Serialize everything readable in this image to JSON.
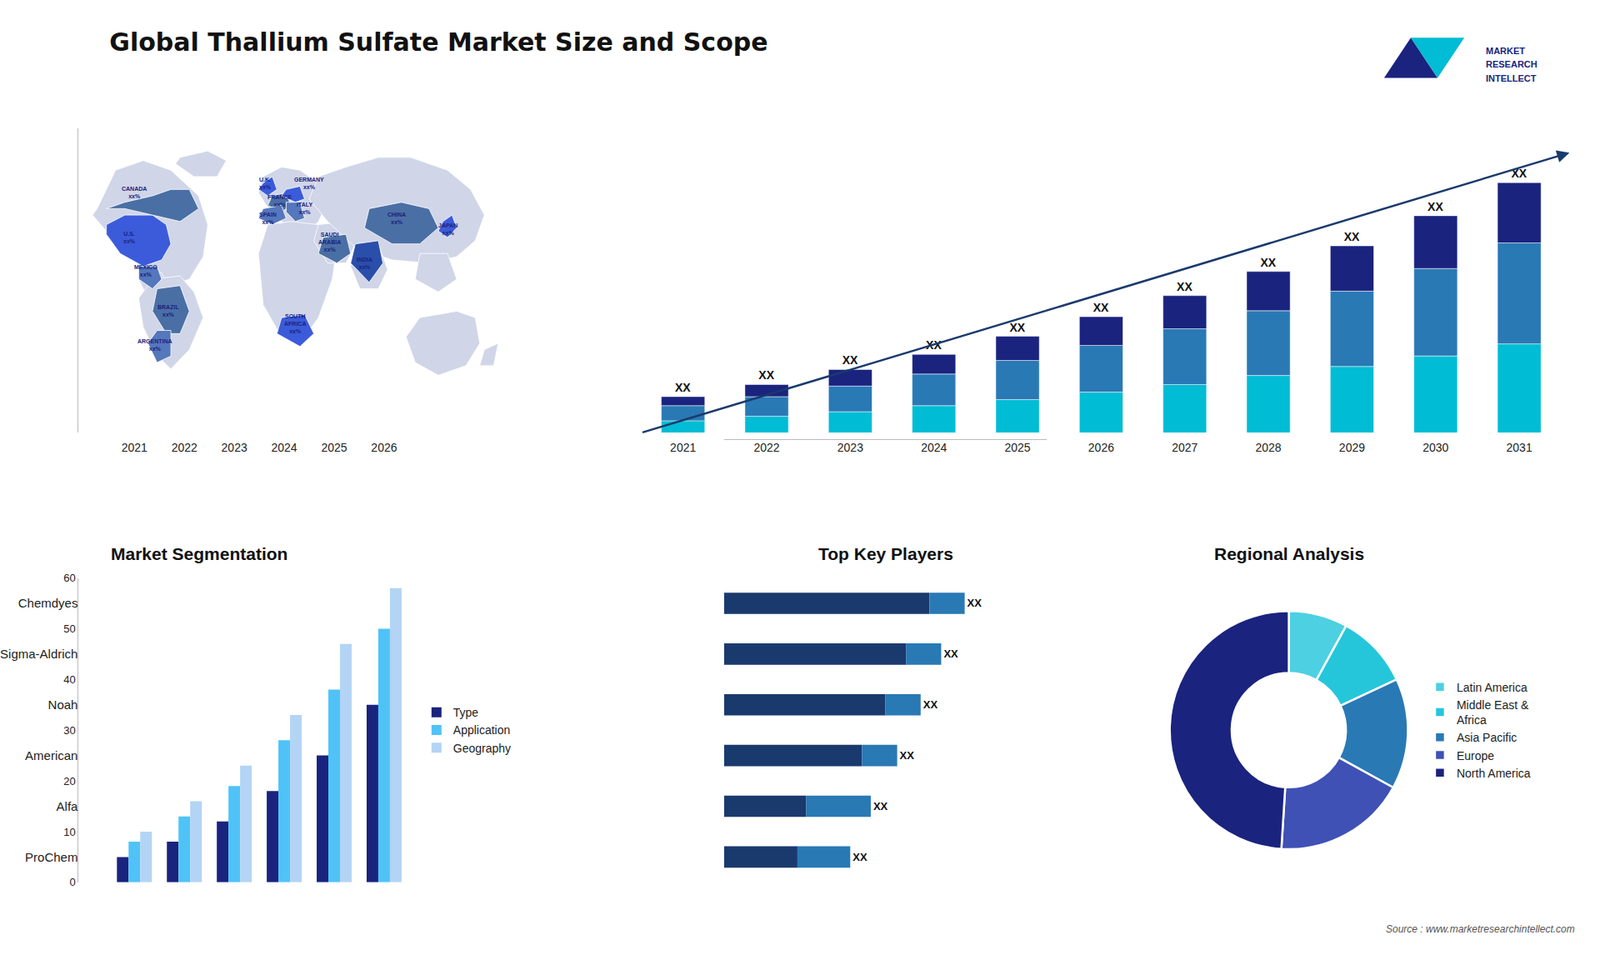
{
  "title": "Global Thallium Sulfate Market Size and Scope",
  "annotations": [
    "Source : www.marketresearchintellect.com",
    "MARKET",
    "RESEARCH",
    "INTELLECT"
  ],
  "chart_data": [
    {
      "type": "map",
      "annotations": [
        "CANADA\nxx%",
        "U.S.\nxx%",
        "MEXICO\nxx%",
        "BRAZIL\nxx%",
        "ARGENTINA\nxx%",
        "U.K.\nxx%",
        "FRANCE\nxx%",
        "SPAIN\nxx%",
        "GERMANY\nxx%",
        "ITALY\nxx%",
        "SAUDI\nARABIA\nxx%",
        "SOUTH\nAFRICA\nxx%",
        "CHINA\nxx%",
        "JAPAN\nxx%",
        "INDIA\nxx%"
      ]
    },
    {
      "type": "bar",
      "stacked": true,
      "categories": [
        "2021",
        "2022",
        "2023",
        "2024",
        "2025",
        "2026",
        "2027",
        "2028",
        "2029",
        "2030",
        "2031"
      ],
      "series": [
        {
          "color": "#00bcd4",
          "values": [
            0.4,
            0.55,
            0.7,
            0.9,
            1.1,
            1.35,
            1.6,
            1.9,
            2.2,
            2.55,
            2.95
          ]
        },
        {
          "color": "#2979b5",
          "values": [
            0.5,
            0.65,
            0.85,
            1.05,
            1.3,
            1.55,
            1.85,
            2.15,
            2.5,
            2.9,
            3.35
          ]
        },
        {
          "color": "#1a237e",
          "values": [
            0.3,
            0.4,
            0.55,
            0.65,
            0.8,
            0.95,
            1.1,
            1.3,
            1.5,
            1.75,
            2.0
          ]
        }
      ],
      "ylim": [
        0,
        10.1
      ],
      "tick_labels": "x",
      "grid": false,
      "annotations": [
        "XX",
        "XX",
        "XX",
        "XX",
        "XX",
        "XX",
        "XX",
        "XX",
        "XX",
        "XX",
        "XX"
      ]
    },
    {
      "type": "bar",
      "title": "Market Segmentation",
      "categories": [
        "2021",
        "2022",
        "2023",
        "2024",
        "2025",
        "2026"
      ],
      "series": [
        {
          "name": "Type",
          "color": "#1a237e",
          "values": [
            5,
            8,
            12,
            18,
            25,
            35
          ]
        },
        {
          "name": "Application",
          "color": "#4fc3f7",
          "values": [
            8,
            13,
            19,
            28,
            38,
            50
          ]
        },
        {
          "name": "Geography",
          "color": "#b3d4f5",
          "values": [
            10,
            16,
            23,
            33,
            47,
            58
          ]
        }
      ],
      "ylim": [
        0,
        60
      ],
      "yticks": [
        0,
        10,
        20,
        30,
        40,
        50,
        60
      ],
      "legend": "right",
      "grid": false
    },
    {
      "type": "bar",
      "title": "Top Key Players",
      "orientation": "horizontal",
      "stacked": true,
      "categories": [
        "Chemdyes",
        "Sigma-Aldrich",
        "Noah",
        "American",
        "Alfa",
        "ProChem"
      ],
      "series": [
        {
          "color": "#1a3a6e",
          "values": [
            0.7,
            0.62,
            0.55,
            0.47,
            0.28,
            0.25
          ]
        },
        {
          "color": "#2979b5",
          "values": [
            0.12,
            0.12,
            0.12,
            0.12,
            0.22,
            0.18
          ]
        }
      ],
      "xlim": [
        0,
        1.1
      ],
      "tick_labels": "y",
      "grid": false,
      "annotations": [
        "XX",
        "XX",
        "XX",
        "XX",
        "XX",
        "XX"
      ]
    },
    {
      "type": "pie",
      "title": "Regional Analysis",
      "categories": [
        "Latin America",
        "Middle East &\nAfrica",
        "Asia Pacific",
        "Europe",
        "North America"
      ],
      "values": [
        8,
        10,
        15,
        18,
        49
      ],
      "colors": [
        "#4dd0e1",
        "#26c6da",
        "#2979b5",
        "#3f51b5",
        "#1a237e"
      ],
      "legend": "right"
    }
  ]
}
